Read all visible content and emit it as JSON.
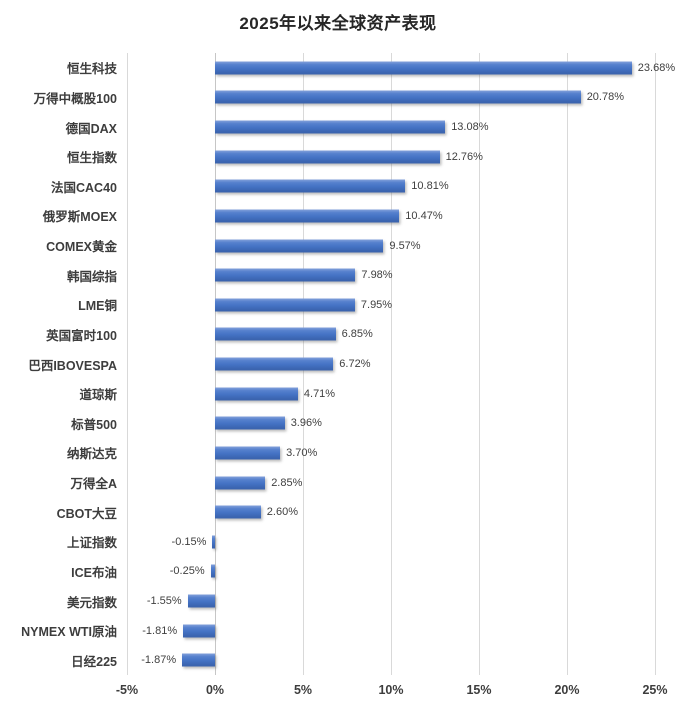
{
  "chart_data": {
    "type": "bar",
    "orientation": "horizontal",
    "title": "2025年以来全球资产表现",
    "categories": [
      "恒生科技",
      "万得中概股100",
      "德国DAX",
      "恒生指数",
      "法国CAC40",
      "俄罗斯MOEX",
      "COMEX黄金",
      "韩国综指",
      "LME铜",
      "英国富时100",
      "巴西IBOVESPA",
      "道琼斯",
      "标普500",
      "纳斯达克",
      "万得全A",
      "CBOT大豆",
      "上证指数",
      "ICE布油",
      "美元指数",
      "NYMEX WTI原油",
      "日经225"
    ],
    "values": [
      23.68,
      20.78,
      13.08,
      12.76,
      10.81,
      10.47,
      9.57,
      7.98,
      7.95,
      6.85,
      6.72,
      4.71,
      3.96,
      3.7,
      2.85,
      2.6,
      -0.15,
      -0.25,
      -1.55,
      -1.81,
      -1.87
    ],
    "value_labels": [
      "23.68%",
      "20.78%",
      "13.08%",
      "12.76%",
      "10.81%",
      "10.47%",
      "9.57%",
      "7.98%",
      "7.95%",
      "6.85%",
      "6.72%",
      "4.71%",
      "3.96%",
      "3.70%",
      "2.85%",
      "2.60%",
      "-0.15%",
      "-0.25%",
      "-1.55%",
      "-1.81%",
      "-1.87%"
    ],
    "xlabel": "",
    "ylabel": "",
    "xlim": [
      -5,
      25
    ],
    "x_tick_values": [
      -5,
      0,
      5,
      10,
      15,
      20,
      25
    ],
    "x_tick_labels": [
      "-5%",
      "0%",
      "5%",
      "10%",
      "15%",
      "20%",
      "25%"
    ],
    "grid": true,
    "legend": false,
    "bar_color": "#4472C4",
    "gridline_color": "#D9D9D9",
    "title_color": "#262626",
    "label_color": "#3D3D3D"
  }
}
